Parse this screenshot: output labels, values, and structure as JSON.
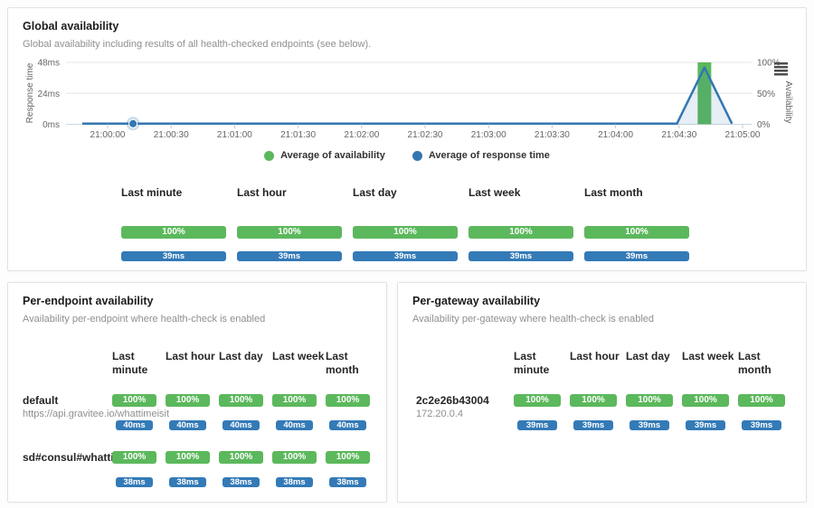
{
  "colors": {
    "green": "#5cb85c",
    "blue": "#337ab7",
    "line_blue": "#3476b2",
    "area_fill": "rgba(52,118,178,0.12)",
    "grid": "#e6e6e6",
    "axis_line": "#ccd6e0",
    "axis_text": "#666666"
  },
  "global_panel": {
    "title": "Global availability",
    "subtitle": "Global availability including results of all health-checked endpoints (see below)."
  },
  "chart_data": {
    "type": "mixed",
    "grid": "horizontal",
    "legend_position": "bottom-center",
    "x_tick_labels": [
      "21:00:00",
      "21:00:30",
      "21:01:00",
      "21:01:30",
      "21:02:00",
      "21:02:30",
      "21:03:00",
      "21:03:30",
      "21:04:00",
      "21:04:30",
      "21:05:00"
    ],
    "left_axis": {
      "title": "Response time",
      "tick_labels": [
        "48ms",
        "24ms",
        "0ms"
      ],
      "range_ms": [
        0,
        48
      ]
    },
    "right_axis": {
      "title": "Availability",
      "tick_labels": [
        "100%",
        "50%",
        "0%"
      ],
      "range_pct": [
        0,
        100
      ]
    },
    "series": [
      {
        "name": "Average of availability",
        "type": "column",
        "points": [
          {
            "time": "21:04:42",
            "availability_pct": 100
          }
        ]
      },
      {
        "name": "Average of response time",
        "type": "area-line",
        "points": [
          {
            "time": "20:59:48",
            "response_ms": 0.5
          },
          {
            "time": "21:00:12",
            "response_ms": 0.5,
            "marker": true
          },
          {
            "time": "21:04:29",
            "response_ms": 0.5
          },
          {
            "time": "21:04:42",
            "response_ms": 44
          },
          {
            "time": "21:04:55",
            "response_ms": 0.5
          }
        ]
      }
    ]
  },
  "global_stats": {
    "columns": [
      {
        "label": "Last minute",
        "availability": "100%",
        "response_time": "39ms"
      },
      {
        "label": "Last hour",
        "availability": "100%",
        "response_time": "39ms"
      },
      {
        "label": "Last day",
        "availability": "100%",
        "response_time": "39ms"
      },
      {
        "label": "Last week",
        "availability": "100%",
        "response_time": "39ms"
      },
      {
        "label": "Last month",
        "availability": "100%",
        "response_time": "39ms"
      }
    ]
  },
  "endpoint_panel": {
    "title": "Per-endpoint availability",
    "subtitle": "Availability per-endpoint where health-check is enabled",
    "headers": [
      "Last minute",
      "Last hour",
      "Last day",
      "Last week",
      "Last month"
    ],
    "rows": [
      {
        "name": "default",
        "detail": "https://api.gravitee.io/whattimeisit",
        "availability": [
          "100%",
          "100%",
          "100%",
          "100%",
          "100%"
        ],
        "response_time": [
          "40ms",
          "40ms",
          "40ms",
          "40ms",
          "40ms"
        ]
      },
      {
        "name": "sd#consul#whattimeisit",
        "detail": "",
        "availability": [
          "100%",
          "100%",
          "100%",
          "100%",
          "100%"
        ],
        "response_time": [
          "38ms",
          "38ms",
          "38ms",
          "38ms",
          "38ms"
        ]
      }
    ]
  },
  "gateway_panel": {
    "title": "Per-gateway availability",
    "subtitle": "Availability per-gateway where health-check is enabled",
    "headers": [
      "Last minute",
      "Last hour",
      "Last day",
      "Last week",
      "Last month"
    ],
    "rows": [
      {
        "name": "2c2e26b43004",
        "detail": "172.20.0.4",
        "availability": [
          "100%",
          "100%",
          "100%",
          "100%",
          "100%"
        ],
        "response_time": [
          "39ms",
          "39ms",
          "39ms",
          "39ms",
          "39ms"
        ]
      }
    ]
  }
}
